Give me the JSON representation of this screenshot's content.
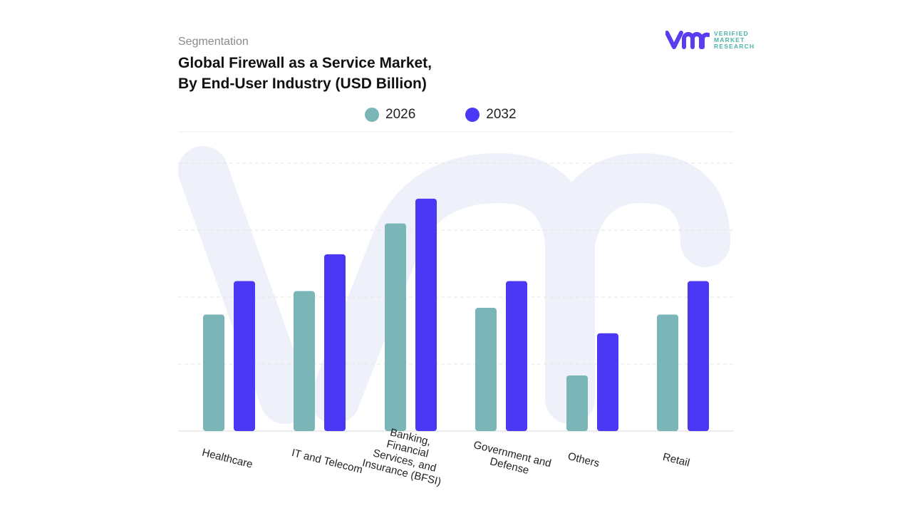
{
  "header": {
    "segment_label": "Segmentation",
    "title_line1": "Global Firewall as a Service Market,",
    "title_line2": "By End-User Industry (USD Billion)"
  },
  "logo": {
    "mark": "vmr",
    "line1": "VERIFIED",
    "line2": "MARKET",
    "line3": "RESEARCH"
  },
  "colors": {
    "s2026": "#7ab5b8",
    "s2032": "#4b38f5",
    "watermark": "#eef0fa"
  },
  "chart_data": {
    "type": "bar",
    "title": "Global Firewall as a Service Market, By End-User Industry (USD Billion)",
    "categories": [
      [
        "Healthcare"
      ],
      [
        "IT and Telecom"
      ],
      [
        "Banking,",
        "Financial",
        "Services, and",
        "Insurance (BFSI)"
      ],
      [
        "Government and",
        "Defense"
      ],
      [
        "Others"
      ],
      [
        "Retail"
      ]
    ],
    "series": [
      {
        "name": "2026",
        "values": [
          1.74,
          2.09,
          3.1,
          1.84,
          0.83,
          1.74
        ]
      },
      {
        "name": "2032",
        "values": [
          2.24,
          2.64,
          3.47,
          2.24,
          1.46,
          2.24
        ]
      }
    ],
    "ylim": [
      0,
      4
    ],
    "grid": true,
    "y_tick_labels_shown": false,
    "legend": "top"
  }
}
